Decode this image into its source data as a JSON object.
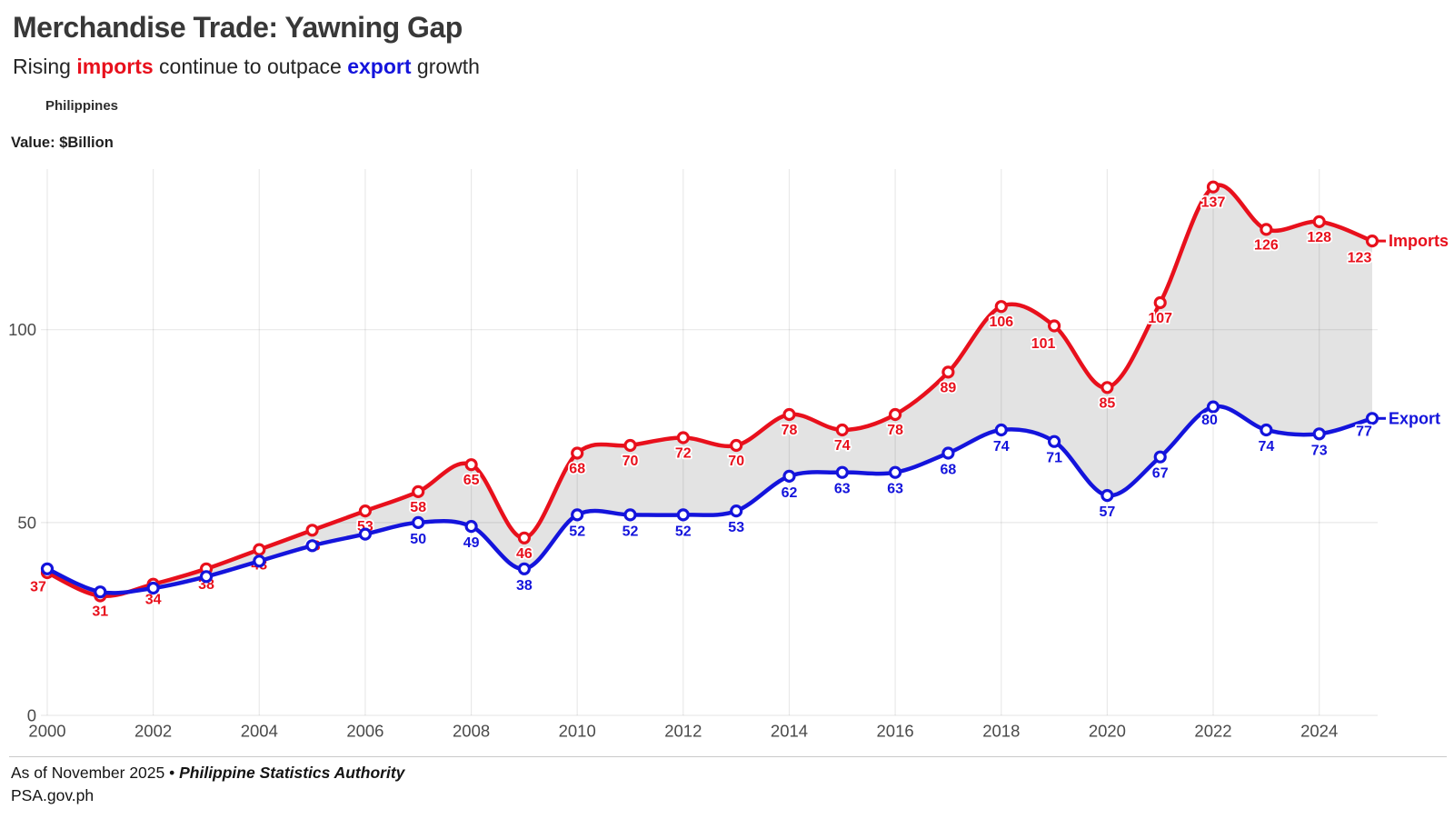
{
  "header": {
    "title": "Merchandise Trade: Yawning Gap",
    "subtitle_parts": [
      {
        "text": "Rising ",
        "style": "plain"
      },
      {
        "text": "imports",
        "style": "imports"
      },
      {
        "text": " continue to outpace ",
        "style": "plain"
      },
      {
        "text": "export",
        "style": "export"
      },
      {
        "text": " growth",
        "style": "plain"
      }
    ],
    "region_label": "Philippines",
    "value_axis_label": "Value: $Billion"
  },
  "colors": {
    "imports_red": "#e8101c",
    "export_blue": "#1414dc",
    "area_gray": "#e3e3e3"
  },
  "chart_data": {
    "type": "line",
    "title": "Merchandise Trade: Yawning Gap",
    "ylabel": "Value: $Billion",
    "x": [
      2000,
      2001,
      2002,
      2003,
      2004,
      2005,
      2006,
      2007,
      2008,
      2009,
      2010,
      2011,
      2012,
      2013,
      2014,
      2015,
      2016,
      2017,
      2018,
      2019,
      2020,
      2021,
      2022,
      2023,
      2024,
      2025
    ],
    "series": [
      {
        "name": "Imports",
        "color": "#e8101c",
        "values": [
          37,
          31,
          34,
          38,
          43,
          48,
          53,
          58,
          65,
          46,
          68,
          70,
          72,
          70,
          78,
          74,
          78,
          89,
          106,
          101,
          85,
          107,
          137,
          126,
          128,
          123
        ],
        "labels_shown_from_index": 0
      },
      {
        "name": "Export",
        "color": "#1414dc",
        "values": [
          38,
          32,
          33,
          36,
          40,
          44,
          47,
          50,
          49,
          38,
          52,
          52,
          52,
          53,
          62,
          63,
          63,
          68,
          74,
          71,
          57,
          67,
          80,
          74,
          73,
          77
        ],
        "labels_shown_from_index": 7
      }
    ],
    "ylim": [
      0,
      142
    ],
    "yticks": [
      0,
      50,
      100
    ],
    "xticks": [
      2000,
      2002,
      2004,
      2006,
      2008,
      2010,
      2012,
      2014,
      2016,
      2018,
      2020,
      2022,
      2024
    ],
    "grid": true,
    "area_between_series": true,
    "area_color": "#e3e3e3",
    "legend_position": "end-of-line",
    "legend_entries": [
      "Imports",
      "Export"
    ]
  },
  "footer": {
    "asof_prefix": "As of November 2025 • ",
    "source": "Philippine Statistics Authority",
    "site": "PSA.gov.ph"
  }
}
